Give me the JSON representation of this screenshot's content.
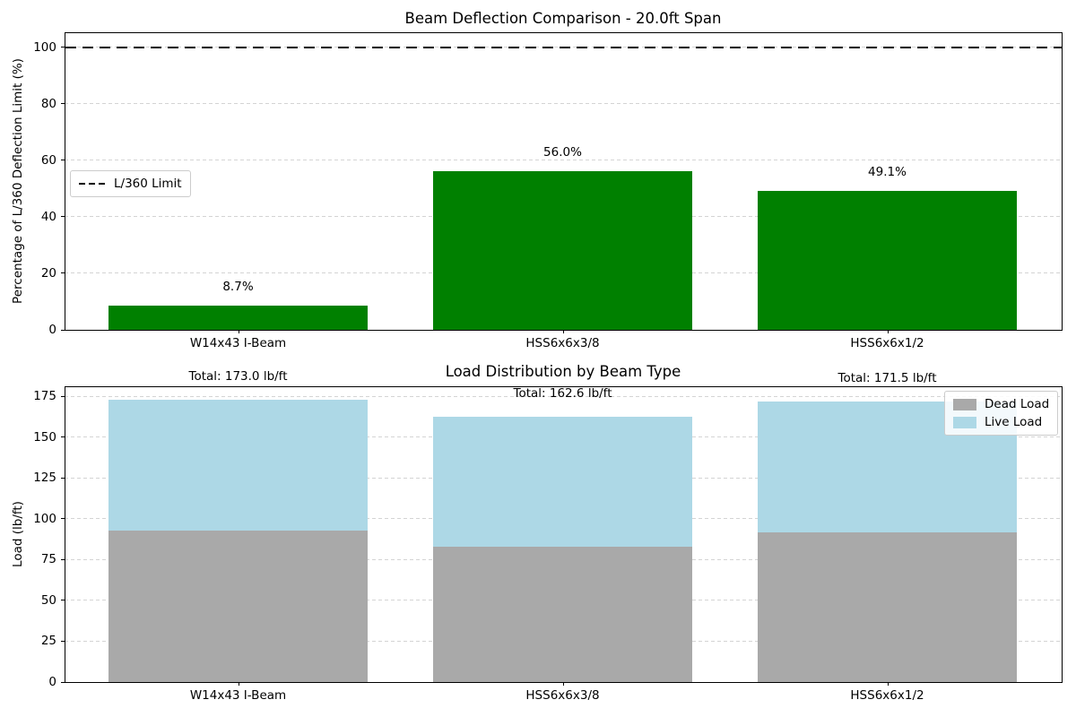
{
  "figure": {
    "background": "#ffffff"
  },
  "chart_data": [
    {
      "type": "bar",
      "title": "Beam Deflection Comparison - 20.0ft Span",
      "ylabel": "Percentage of L/360 Deflection Limit (%)",
      "xlabel": "",
      "categories": [
        "W14x43 I-Beam",
        "HSS6x6x3/8",
        "HSS6x6x1/2"
      ],
      "values": [
        8.7,
        56.0,
        49.1
      ],
      "bar_labels": [
        "8.7%",
        "56.0%",
        "49.1%"
      ],
      "bar_color": "#008000",
      "ylim": [
        0,
        105.3
      ],
      "yticks": [
        0,
        20,
        40,
        60,
        80,
        100
      ],
      "grid": true,
      "reference_line": {
        "value": 100,
        "label": "L/360 Limit",
        "color": "#000000",
        "style": "dashed"
      },
      "legend_position": "center-left"
    },
    {
      "type": "bar",
      "stacked": true,
      "title": "Load Distribution by Beam Type",
      "ylabel": "Load (lb/ft)",
      "xlabel": "",
      "categories": [
        "W14x43 I-Beam",
        "HSS6x6x3/8",
        "HSS6x6x1/2"
      ],
      "series": [
        {
          "name": "Dead Load",
          "values": [
            93.0,
            82.6,
            91.5
          ],
          "color": "#a9a9a9"
        },
        {
          "name": "Live Load",
          "values": [
            80.0,
            80.0,
            80.0
          ],
          "color": "#add8e6"
        }
      ],
      "totals": [
        173.0,
        162.6,
        171.5
      ],
      "total_labels": [
        "Total: 173.0 lb/ft",
        "Total: 162.6 lb/ft",
        "Total: 171.5 lb/ft"
      ],
      "ylim": [
        0,
        181.1
      ],
      "yticks": [
        0,
        25,
        50,
        75,
        100,
        125,
        150,
        175
      ],
      "grid": true,
      "legend_position": "top-right"
    }
  ]
}
